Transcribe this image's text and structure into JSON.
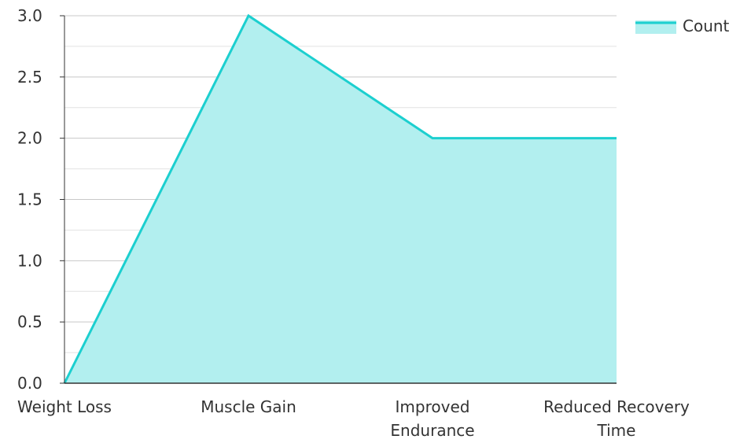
{
  "chart_data": {
    "type": "area",
    "title": "",
    "xlabel": "",
    "ylabel": "",
    "categories": [
      [
        "Weight Loss"
      ],
      [
        "Muscle Gain"
      ],
      [
        "Improved",
        "Endurance"
      ],
      [
        "Reduced Recovery",
        "Time"
      ]
    ],
    "series": [
      {
        "name": "Count",
        "values": [
          0,
          3,
          2,
          2
        ]
      }
    ],
    "ylim": [
      0,
      3
    ],
    "y_ticks": [
      "0.0",
      "0.5",
      "1.0",
      "1.5",
      "2.0",
      "2.5",
      "3.0"
    ],
    "grid": true,
    "legend_position": "top-right",
    "colors": {
      "line": "#1ccfcf",
      "fill": "#b2efef",
      "grid": "#c8c8c8",
      "minor_grid": "#e2e2e2",
      "axis": "#333333"
    }
  }
}
